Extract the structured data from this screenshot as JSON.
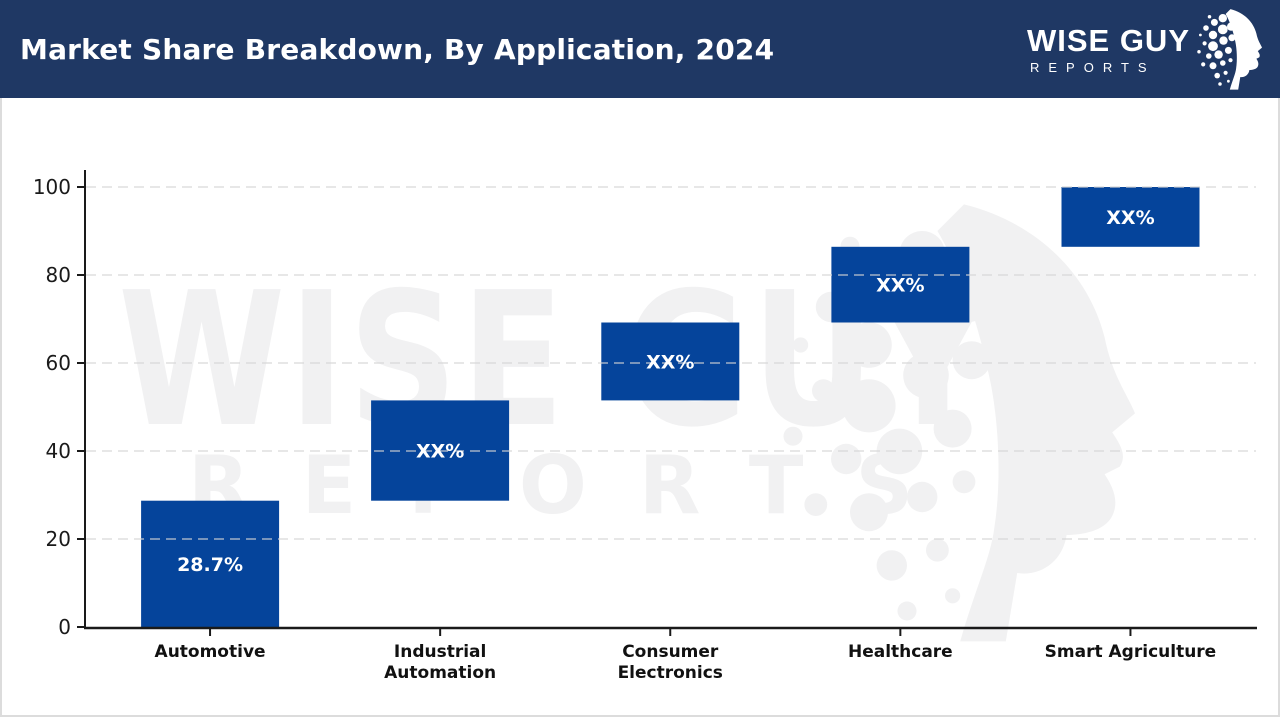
{
  "header": {
    "title": "Market Share Breakdown, By Application, 2024",
    "background": "#1f3864",
    "logo": {
      "wordmark": "WISE GUY",
      "subtext": "REPORTS"
    }
  },
  "watermark": {
    "wordmark": "WISE GUY",
    "subtext": "REPORTS"
  },
  "chart_data": {
    "type": "bar",
    "subtype": "floating-waterfall",
    "title": "Market Share Breakdown, By Application, 2024",
    "categories": [
      "Automotive",
      "Industrial Automation",
      "Consumer Electronics",
      "Healthcare",
      "Smart Agriculture"
    ],
    "category_lines": [
      [
        "Automotive"
      ],
      [
        "Industrial",
        "Automation"
      ],
      [
        "Consumer",
        "Electronics"
      ],
      [
        "Healthcare"
      ],
      [
        "Smart Agriculture"
      ]
    ],
    "segments": [
      {
        "start": 0,
        "end": 28.7,
        "value": 28.7,
        "label": "28.7%"
      },
      {
        "start": 28.7,
        "end": 51.5,
        "value": 22.8,
        "label": "XX%"
      },
      {
        "start": 51.5,
        "end": 69.2,
        "value": 17.7,
        "label": "XX%"
      },
      {
        "start": 69.2,
        "end": 86.4,
        "value": 17.2,
        "label": "XX%"
      },
      {
        "start": 86.4,
        "end": 100,
        "value": 13.6,
        "label": "XX%"
      }
    ],
    "xlabel": "",
    "ylabel": "",
    "ylim": [
      0,
      104
    ],
    "yticks": [
      0,
      20,
      40,
      60,
      80,
      100
    ],
    "grid": "horizontal-dashed",
    "legend": "none",
    "bar_color": "#05449b",
    "bar_label_color": "#ffffff",
    "axis_color": "#1a1a1a",
    "grid_color": "#d4d4d4"
  }
}
